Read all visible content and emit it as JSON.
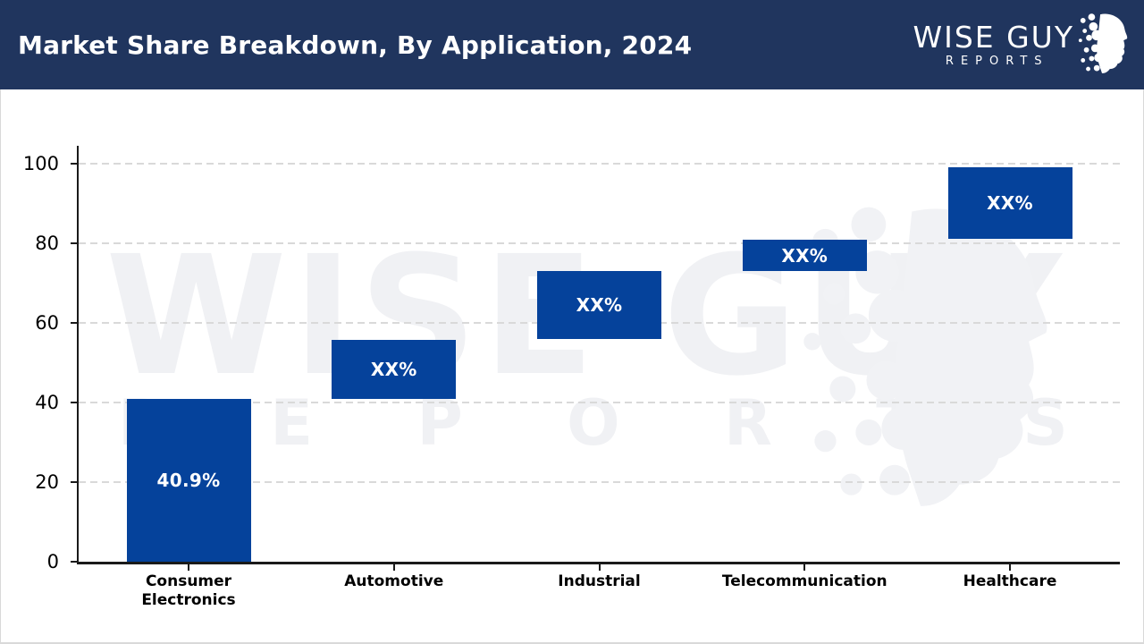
{
  "header": {
    "title": "Market Share Breakdown, By Application, 2024",
    "bg_color": "#20355e",
    "logo": {
      "line1": "WISE GUY",
      "line2": "REPORTS"
    }
  },
  "watermark": {
    "line1": "WISE GUY",
    "line2": "REPORTS"
  },
  "chart_data": {
    "type": "bar",
    "subtype": "waterfall",
    "title": "Market Share Breakdown, By Application, 2024",
    "categories": [
      "Consumer\nElectronics",
      "Automotive",
      "Industrial",
      "Telecommunication",
      "Healthcare"
    ],
    "segments": [
      {
        "category": "Consumer Electronics",
        "start": 0,
        "end": 40.9,
        "label": "40.9%"
      },
      {
        "category": "Automotive",
        "start": 40.9,
        "end": 55.7,
        "label": "XX%"
      },
      {
        "category": "Industrial",
        "start": 56.0,
        "end": 73.0,
        "label": "XX%"
      },
      {
        "category": "Telecommunication",
        "start": 73.0,
        "end": 80.9,
        "label": "XX%"
      },
      {
        "category": "Healthcare",
        "start": 81.1,
        "end": 99.1,
        "label": "XX%"
      }
    ],
    "xlabel": "",
    "ylabel": "",
    "yticks": [
      0,
      20,
      40,
      60,
      80,
      100
    ],
    "ylim": [
      0,
      104.5
    ],
    "grid": true,
    "gridline_color": "#d9d9d9",
    "bar_color": "#05429b",
    "bar_label_color": "#ffffff",
    "legend": false
  }
}
